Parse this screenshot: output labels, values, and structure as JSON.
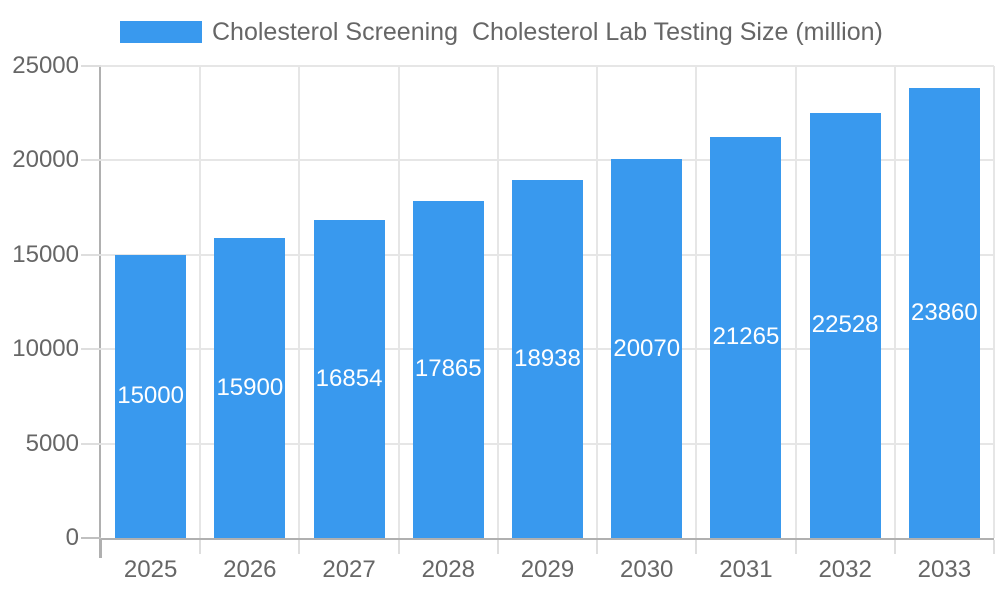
{
  "header": {
    "legend_label": "Cholesterol Screening",
    "title": "Cholesterol Lab Testing Size (million)"
  },
  "chart_data": {
    "type": "bar",
    "title": "Cholesterol Lab Testing Size (million)",
    "legend": [
      "Cholesterol Screening"
    ],
    "legend_position": "top",
    "categories": [
      "2025",
      "2026",
      "2027",
      "2028",
      "2029",
      "2030",
      "2031",
      "2032",
      "2033"
    ],
    "values": [
      15000,
      15900,
      16854,
      17865,
      18938,
      20070,
      21265,
      22528,
      23860
    ],
    "data_labels_shown": true,
    "data_label_position": "center-of-bar",
    "xlabel": "",
    "ylabel": "",
    "ylim": [
      0,
      25000
    ],
    "yticks": [
      0,
      5000,
      10000,
      15000,
      20000,
      25000
    ],
    "grid": true,
    "colors": {
      "bar": "#3999ee",
      "bar_label_text": "#ffffff",
      "axis_text": "#666666",
      "gridline": "#e6e6e6",
      "axis_line": "#b0b0b0",
      "tick_mark": "#dedede",
      "zero_tick_mark": "#c0c0c0",
      "background": "#ffffff"
    }
  }
}
